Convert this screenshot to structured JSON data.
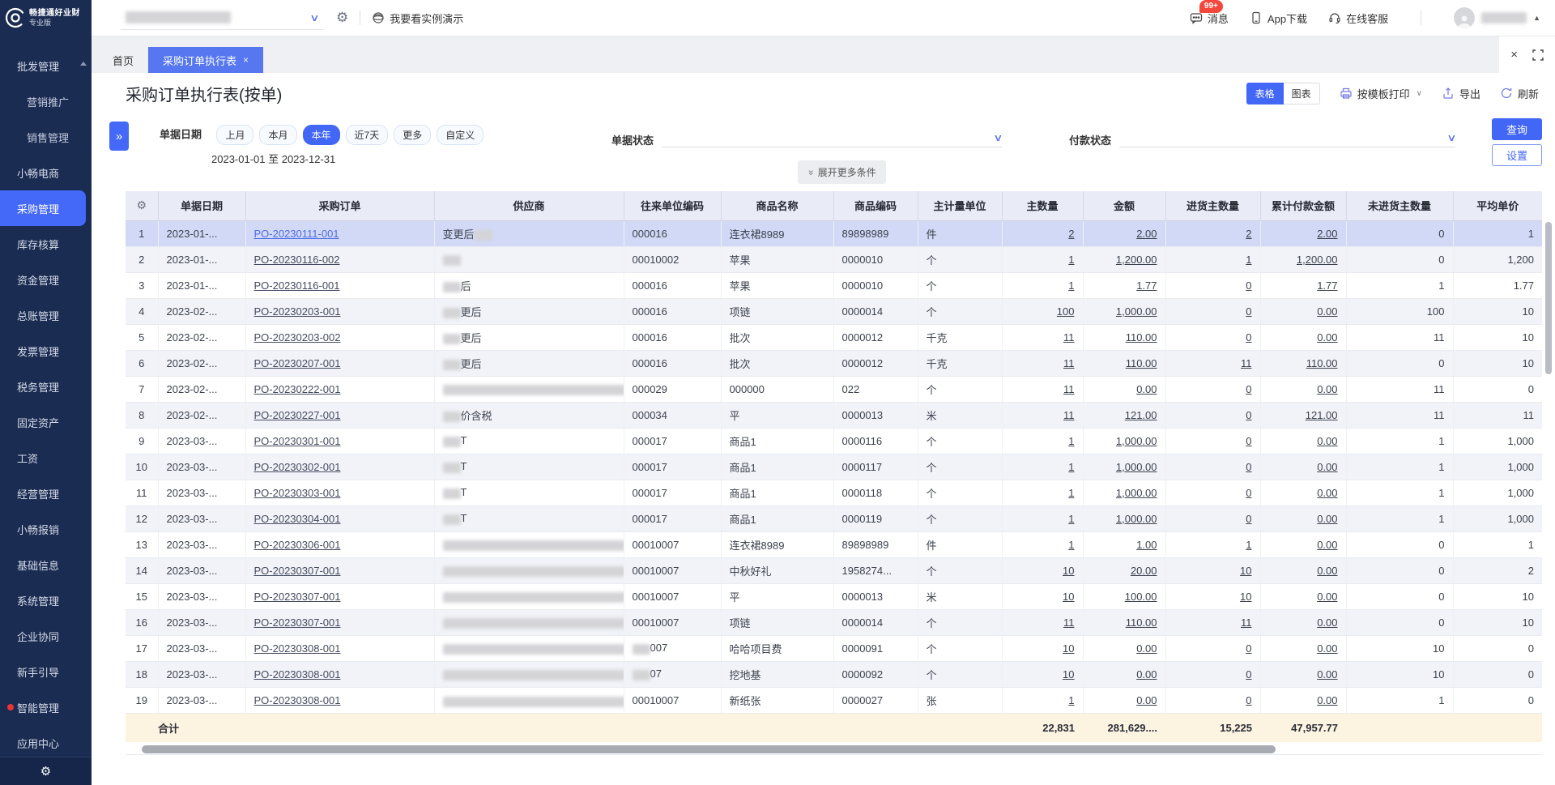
{
  "topbar": {
    "logo_title": "畅捷通好业财",
    "logo_subtitle": "专业版",
    "demo_link": "我要看实例演示",
    "messages_label": "消息",
    "messages_badge": "99+",
    "app_download_label": "App下载",
    "support_label": "在线客服"
  },
  "sidebar": {
    "items": [
      {
        "label": "批发管理",
        "caret": true
      },
      {
        "label": "营销推广",
        "sub": true
      },
      {
        "label": "销售管理",
        "sub": true
      },
      {
        "label": "小畅电商"
      },
      {
        "label": "采购管理",
        "active": true
      },
      {
        "label": "库存核算"
      },
      {
        "label": "资金管理"
      },
      {
        "label": "总账管理"
      },
      {
        "label": "发票管理"
      },
      {
        "label": "税务管理"
      },
      {
        "label": "固定资产"
      },
      {
        "label": "工资"
      },
      {
        "label": "经营管理"
      },
      {
        "label": "小畅报销"
      },
      {
        "label": "基础信息"
      },
      {
        "label": "系统管理"
      },
      {
        "label": "企业协同"
      },
      {
        "label": "新手引导"
      },
      {
        "label": "智能管理",
        "dot": true
      },
      {
        "label": "应用中心"
      }
    ]
  },
  "tabbar": {
    "tabs": [
      {
        "label": "首页"
      },
      {
        "label": "采购订单执行表",
        "active": true,
        "closable": true
      }
    ]
  },
  "page": {
    "title": "采购订单执行表(按单)",
    "view_table": "表格",
    "view_chart": "图表",
    "print_label": "按模板打印",
    "export_label": "导出",
    "refresh_label": "刷新"
  },
  "filters": {
    "date_label": "单据日期",
    "date_pills": [
      "上月",
      "本月",
      "本年",
      "近7天",
      "更多",
      "自定义"
    ],
    "date_active_pill": "本年",
    "date_range": "2023-01-01 至 2023-12-31",
    "doc_status_label": "单据状态",
    "pay_status_label": "付款状态",
    "search_button": "查询",
    "settings_button": "设置",
    "expand_more": "展开更多条件"
  },
  "table": {
    "columns": [
      "单据日期",
      "采购订单",
      "供应商",
      "往来单位编码",
      "商品名称",
      "商品编码",
      "主计量单位",
      "主数量",
      "金额",
      "进货主数量",
      "累计付款金额",
      "未进货主数量",
      "平均单价"
    ],
    "rows": [
      {
        "no": "1",
        "date": "2023-01-...",
        "po": "PO-20230111-001",
        "supplier_visible": "变更后",
        "supplier_blur": "xs",
        "text_first": true,
        "partner_code": "000016",
        "product": "连衣裙8989",
        "product_code": "89898989",
        "unit": "件",
        "qty": "2",
        "amount": "2.00",
        "received_qty": "2",
        "paid_amount": "2.00",
        "unreceived_qty": "0",
        "avg_price": "1",
        "selected": true
      },
      {
        "no": "2",
        "date": "2023-01-...",
        "po": "PO-20230116-002",
        "supplier_visible": "",
        "supplier_blur": "xs",
        "partner_code": "00010002",
        "product": "苹果",
        "product_code": "0000010",
        "unit": "个",
        "qty": "1",
        "amount": "1,200.00",
        "received_qty": "1",
        "paid_amount": "1,200.00",
        "unreceived_qty": "0",
        "avg_price": "1,200"
      },
      {
        "no": "3",
        "date": "2023-01-...",
        "po": "PO-20230116-001",
        "supplier_visible": "后",
        "supplier_blur": "xs",
        "partner_code": "000016",
        "product": "苹果",
        "product_code": "0000010",
        "unit": "个",
        "qty": "1",
        "amount": "1.77",
        "received_qty": "0",
        "paid_amount": "1.77",
        "unreceived_qty": "1",
        "avg_price": "1.77"
      },
      {
        "no": "4",
        "date": "2023-02-...",
        "po": "PO-20230203-001",
        "supplier_visible": "更后",
        "supplier_blur": "xs",
        "partner_code": "000016",
        "product": "项链",
        "product_code": "0000014",
        "unit": "个",
        "qty": "100",
        "amount": "1,000.00",
        "received_qty": "0",
        "paid_amount": "0.00",
        "unreceived_qty": "100",
        "avg_price": "10"
      },
      {
        "no": "5",
        "date": "2023-02-...",
        "po": "PO-20230203-002",
        "supplier_visible": "更后",
        "supplier_blur": "xs",
        "partner_code": "000016",
        "product": "批次",
        "product_code": "0000012",
        "unit": "千克",
        "qty": "11",
        "amount": "110.00",
        "received_qty": "0",
        "paid_amount": "0.00",
        "unreceived_qty": "11",
        "avg_price": "10"
      },
      {
        "no": "6",
        "date": "2023-02-...",
        "po": "PO-20230207-001",
        "supplier_visible": "更后",
        "supplier_blur": "xs",
        "partner_code": "000016",
        "product": "批次",
        "product_code": "0000012",
        "unit": "千克",
        "qty": "11",
        "amount": "110.00",
        "received_qty": "11",
        "paid_amount": "110.00",
        "unreceived_qty": "0",
        "avg_price": "10"
      },
      {
        "no": "7",
        "date": "2023-02-...",
        "po": "PO-20230222-001",
        "supplier_visible": "",
        "supplier_blur": "xl",
        "partner_code": "000029",
        "product": "000000",
        "product_code": "022",
        "unit": "个",
        "qty": "11",
        "amount": "0.00",
        "received_qty": "0",
        "paid_amount": "0.00",
        "unreceived_qty": "11",
        "avg_price": "0"
      },
      {
        "no": "8",
        "date": "2023-02-...",
        "po": "PO-20230227-001",
        "supplier_visible": "价含税",
        "supplier_blur": "xs",
        "partner_code": "000034",
        "product": "平",
        "product_code": "0000013",
        "unit": "米",
        "qty": "11",
        "amount": "121.00",
        "received_qty": "0",
        "paid_amount": "121.00",
        "unreceived_qty": "11",
        "avg_price": "11"
      },
      {
        "no": "9",
        "date": "2023-03-...",
        "po": "PO-20230301-001",
        "supplier_visible": "T",
        "supplier_blur": "xs",
        "partner_code": "000017",
        "product": "商品1",
        "product_code": "0000116",
        "unit": "个",
        "qty": "1",
        "amount": "1,000.00",
        "received_qty": "0",
        "paid_amount": "0.00",
        "unreceived_qty": "1",
        "avg_price": "1,000"
      },
      {
        "no": "10",
        "date": "2023-03-...",
        "po": "PO-20230302-001",
        "supplier_visible": "T",
        "supplier_blur": "xs",
        "partner_code": "000017",
        "product": "商品1",
        "product_code": "0000117",
        "unit": "个",
        "qty": "1",
        "amount": "1,000.00",
        "received_qty": "0",
        "paid_amount": "0.00",
        "unreceived_qty": "1",
        "avg_price": "1,000"
      },
      {
        "no": "11",
        "date": "2023-03-...",
        "po": "PO-20230303-001",
        "supplier_visible": "T",
        "supplier_blur": "xs",
        "partner_code": "000017",
        "product": "商品1",
        "product_code": "0000118",
        "unit": "个",
        "qty": "1",
        "amount": "1,000.00",
        "received_qty": "0",
        "paid_amount": "0.00",
        "unreceived_qty": "1",
        "avg_price": "1,000"
      },
      {
        "no": "12",
        "date": "2023-03-...",
        "po": "PO-20230304-001",
        "supplier_visible": "T",
        "supplier_blur": "xs",
        "partner_code": "000017",
        "product": "商品1",
        "product_code": "0000119",
        "unit": "个",
        "qty": "1",
        "amount": "1,000.00",
        "received_qty": "0",
        "paid_amount": "0.00",
        "unreceived_qty": "1",
        "avg_price": "1,000"
      },
      {
        "no": "13",
        "date": "2023-03-...",
        "po": "PO-20230306-001",
        "supplier_visible": "..",
        "supplier_blur": "xl",
        "partner_code": "00010007",
        "product": "连衣裙8989",
        "product_code": "89898989",
        "unit": "件",
        "qty": "1",
        "amount": "1.00",
        "received_qty": "1",
        "paid_amount": "0.00",
        "unreceived_qty": "0",
        "avg_price": "1"
      },
      {
        "no": "14",
        "date": "2023-03-...",
        "po": "PO-20230307-001",
        "supplier_visible": "..",
        "supplier_blur": "xl",
        "partner_code": "00010007",
        "product": "中秋好礼",
        "product_code": "1958274...",
        "unit": "个",
        "qty": "10",
        "amount": "20.00",
        "received_qty": "10",
        "paid_amount": "0.00",
        "unreceived_qty": "0",
        "avg_price": "2"
      },
      {
        "no": "15",
        "date": "2023-03-...",
        "po": "PO-20230307-001",
        "supplier_visible": "..",
        "supplier_blur": "xl",
        "partner_code": "00010007",
        "product": "平",
        "product_code": "0000013",
        "unit": "米",
        "qty": "10",
        "amount": "100.00",
        "received_qty": "10",
        "paid_amount": "0.00",
        "unreceived_qty": "0",
        "avg_price": "10"
      },
      {
        "no": "16",
        "date": "2023-03-...",
        "po": "PO-20230307-001",
        "supplier_visible": "..",
        "supplier_blur": "xl",
        "partner_code": "00010007",
        "product": "项链",
        "product_code": "0000014",
        "unit": "个",
        "qty": "11",
        "amount": "110.00",
        "received_qty": "11",
        "paid_amount": "0.00",
        "unreceived_qty": "0",
        "avg_price": "10"
      },
      {
        "no": "17",
        "date": "2023-03-...",
        "po": "PO-20230308-001",
        "supplier_visible": "",
        "supplier_blur": "xl",
        "partner_code": "007",
        "partner_blur": true,
        "product": "哈哈项目费",
        "product_code": "0000091",
        "unit": "个",
        "qty": "10",
        "amount": "0.00",
        "received_qty": "0",
        "paid_amount": "0.00",
        "unreceived_qty": "10",
        "avg_price": "0"
      },
      {
        "no": "18",
        "date": "2023-03-...",
        "po": "PO-20230308-001",
        "supplier_visible": "",
        "supplier_blur": "xl",
        "partner_code": "07",
        "partner_blur": true,
        "product": "挖地基",
        "product_code": "0000092",
        "unit": "个",
        "qty": "10",
        "amount": "0.00",
        "received_qty": "0",
        "paid_amount": "0.00",
        "unreceived_qty": "10",
        "avg_price": "0"
      },
      {
        "no": "19",
        "date": "2023-03-...",
        "po": "PO-20230308-001",
        "supplier_visible": "司",
        "supplier_blur": "xl",
        "partner_code": "00010007",
        "product": "新纸张",
        "product_code": "0000027",
        "unit": "张",
        "qty": "1",
        "amount": "0.00",
        "received_qty": "0",
        "paid_amount": "0.00",
        "unreceived_qty": "1",
        "avg_price": "0"
      }
    ],
    "totals": {
      "label": "合计",
      "qty": "22,831",
      "amount": "281,629....",
      "received_qty": "15,225",
      "paid_amount": "47,957.77"
    }
  },
  "colors": {
    "accent": "#4266f5",
    "sidebar_bg": "#1b2c52",
    "sidebar_active": "#4468f7",
    "tab_active": "#5677f0",
    "table_header_bg": "#e9ebf7",
    "selected_row_bg": "#d2d9f6",
    "totals_row_bg": "#fcf3e1",
    "badge_red": "#f5483d"
  }
}
